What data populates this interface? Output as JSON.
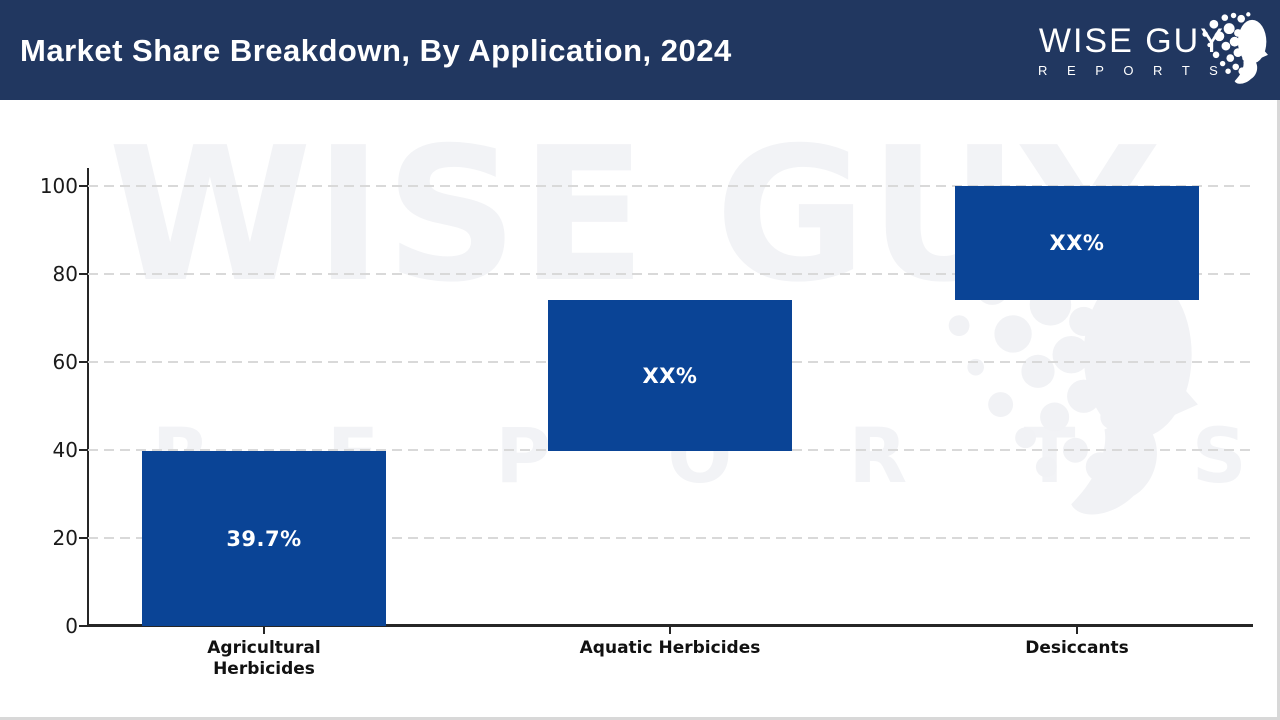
{
  "header": {
    "title": "Market Share Breakdown, By Application, 2024",
    "logo": {
      "brand_line1": "WISE GUY",
      "brand_line2": "R E P O R T S"
    }
  },
  "watermark": {
    "line1": "WISE GUY",
    "line2": "R E P O R T S"
  },
  "chart_data": {
    "type": "bar",
    "subtype": "floating-waterfall",
    "title": "Market Share Breakdown, By Application, 2024",
    "categories": [
      "Agricultural\nHerbicides",
      "Aquatic Herbicides",
      "Desiccants"
    ],
    "segments": [
      {
        "category": "Agricultural\nHerbicides",
        "start": 0,
        "end": 39.7,
        "label": "39.7%"
      },
      {
        "category": "Aquatic Herbicides",
        "start": 39.7,
        "end": 74,
        "label": "XX%"
      },
      {
        "category": "Desiccants",
        "start": 74,
        "end": 100,
        "label": "XX%"
      }
    ],
    "xlabel": "",
    "ylabel": "",
    "ylim": [
      0,
      100
    ],
    "yticks": [
      0,
      20,
      40,
      60,
      80,
      100
    ],
    "grid": true,
    "grid_style": "dashed",
    "legend_position": "none",
    "bar_color": "#0a4496",
    "bar_label_color": "#ffffff"
  },
  "colors": {
    "header_bg": "#213760",
    "bar": "#0a4496",
    "axis": "#262626",
    "grid": "#d9d9d9",
    "watermark": "#f2f3f6",
    "page_bg": "#ffffff"
  }
}
